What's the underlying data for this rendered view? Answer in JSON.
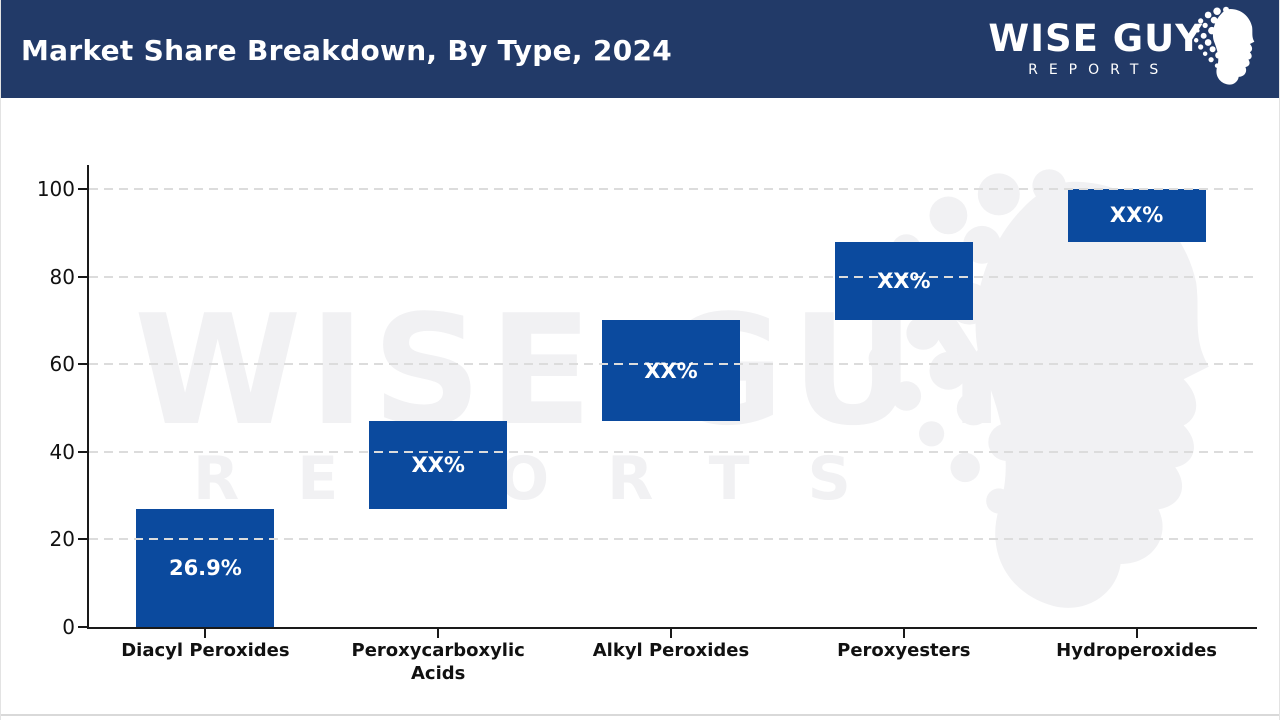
{
  "header": {
    "title": "Market Share Breakdown, By Type, 2024",
    "logo": {
      "line1": "WISE GUY",
      "line2": "REPORTS"
    }
  },
  "watermark": {
    "line1": "WISE GUY",
    "line2": "REPORTS"
  },
  "colors": {
    "header_bg": "#223a68",
    "bar": "#0b4a9e",
    "grid": "#dcdcdc",
    "axis": "#1a1a1a",
    "bar_label": "#ffffff",
    "watermark": "#f1f1f3"
  },
  "chart_data": {
    "type": "bar",
    "subtype": "waterfall",
    "title": "Market Share Breakdown, By Type, 2024",
    "xlabel": "",
    "ylabel": "",
    "categories": [
      "Diacyl Peroxides",
      "Peroxycarboxylic\nAcids",
      "Alkyl Peroxides",
      "Peroxyesters",
      "Hydroperoxides"
    ],
    "segments": [
      {
        "category": "Diacyl Peroxides",
        "label": "26.9%",
        "start": 0,
        "end": 26.9
      },
      {
        "category": "Peroxycarboxylic Acids",
        "label": "XX%",
        "start": 26.9,
        "end": 47
      },
      {
        "category": "Alkyl Peroxides",
        "label": "XX%",
        "start": 47,
        "end": 70
      },
      {
        "category": "Peroxyesters",
        "label": "XX%",
        "start": 70,
        "end": 88
      },
      {
        "category": "Hydroperoxides",
        "label": "XX%",
        "start": 88,
        "end": 100
      }
    ],
    "yticks": [
      0,
      20,
      40,
      60,
      80,
      100
    ],
    "ylim": [
      0,
      105
    ],
    "grid": "dashed-horizontal",
    "legend": "none"
  }
}
